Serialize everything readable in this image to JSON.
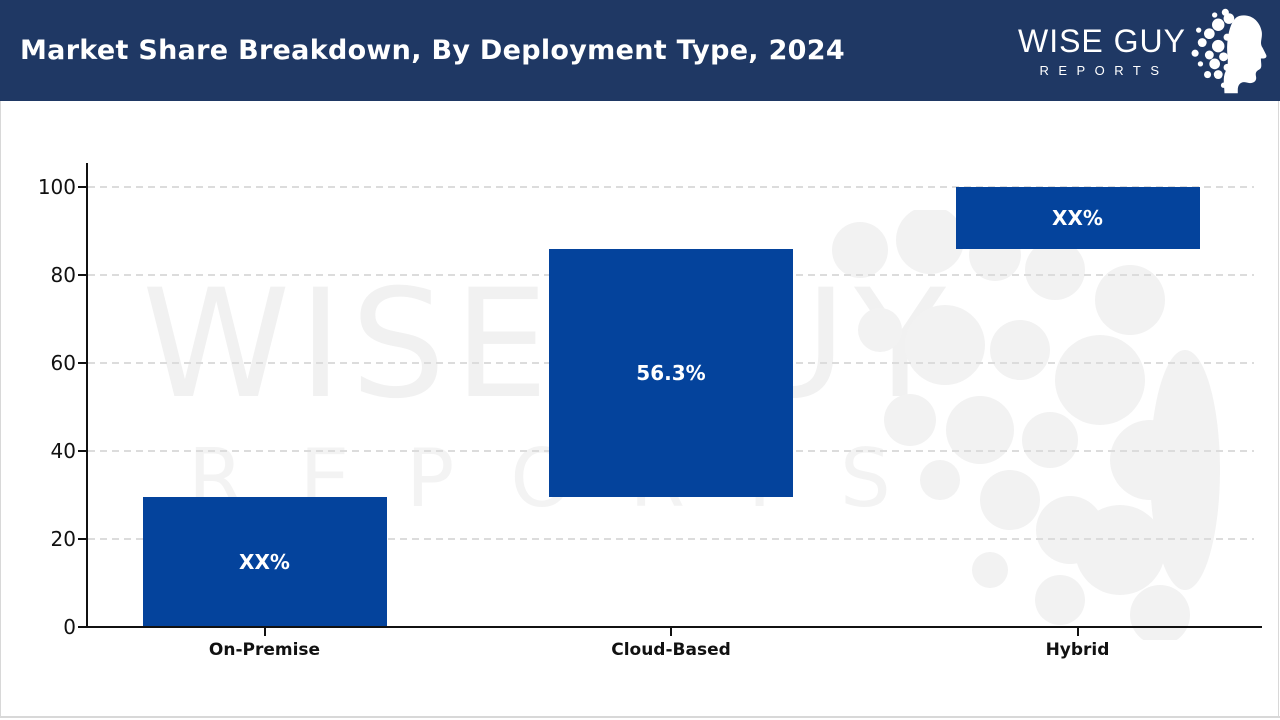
{
  "header": {
    "title": "Market Share Breakdown, By Deployment Type, 2024",
    "bg_color": "#1F3864",
    "logo": {
      "line1": "WISE GUY",
      "line2": "REPORTS"
    }
  },
  "watermark": {
    "line1": "WISE GUY",
    "line2": "REPORTS"
  },
  "chart_data": {
    "type": "bar",
    "subtype": "waterfall (floating stacked segments)",
    "title": "Market Share Breakdown, By Deployment Type, 2024",
    "categories": [
      "On-Premise",
      "Cloud-Based",
      "Hybrid"
    ],
    "series": [
      {
        "name": "Market share (%)",
        "base": [
          0,
          29.4,
          85.7
        ],
        "values": [
          29.4,
          56.3,
          14.3
        ]
      }
    ],
    "bar_labels": [
      "XX%",
      "56.3%",
      "XX%"
    ],
    "xlabel": "",
    "ylabel": "",
    "ylim": [
      0,
      100
    ],
    "yticks": [
      0,
      20,
      40,
      60,
      80,
      100
    ],
    "grid": "horizontal-dashed",
    "legend": "none",
    "colors": {
      "bar": "#04439C",
      "bar_label": "#FFFFFF",
      "grid": "#DCDCDC",
      "axis": "#111111",
      "tick_label": "#111111"
    }
  }
}
